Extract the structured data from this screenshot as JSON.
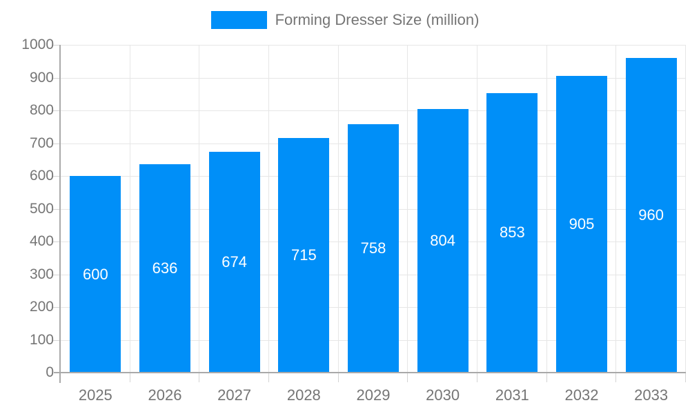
{
  "legend": {
    "items": [
      {
        "label": "Forming Dresser Size (million)",
        "color": "#008ff8"
      }
    ]
  },
  "chart_data": {
    "type": "bar",
    "series_name": "Forming Dresser Size (million)",
    "categories": [
      "2025",
      "2026",
      "2027",
      "2028",
      "2029",
      "2030",
      "2031",
      "2032",
      "2033"
    ],
    "values": [
      600,
      636,
      674,
      715,
      758,
      804,
      853,
      905,
      960
    ],
    "bar_labels": [
      "600",
      "636",
      "674",
      "715",
      "758",
      "804",
      "853",
      "905",
      "960"
    ],
    "title": "",
    "xlabel": "",
    "ylabel": "",
    "ylim": [
      0,
      1000
    ],
    "ytick_step": 100,
    "ytick_labels": [
      "0",
      "100",
      "200",
      "300",
      "400",
      "500",
      "600",
      "700",
      "800",
      "900",
      "1000"
    ],
    "grid": true,
    "legend_position": "top",
    "colors": {
      "bar": "#008ff8",
      "bar_label": "#ffffff",
      "axis": "#a9a9a9",
      "grid": "#e6e6e6",
      "tick": "#d4d4d4",
      "text": "#757575"
    }
  }
}
